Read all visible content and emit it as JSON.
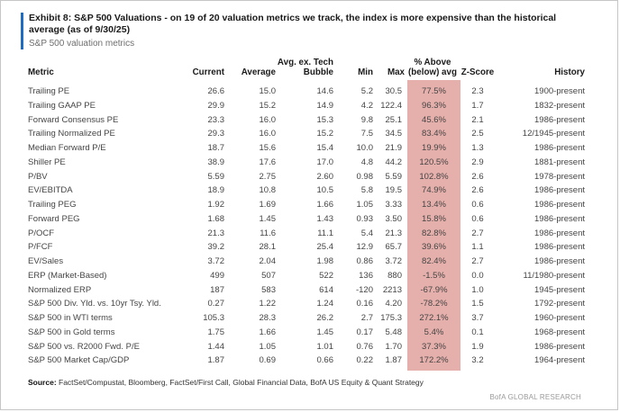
{
  "title": "Exhibit 8: S&P 500 Valuations - on 19 of 20 valuation metrics we track, the index is more expensive than the historical average (as of 9/30/25)",
  "subtitle": "S&P 500 valuation metrics",
  "colors": {
    "accent_bar_blue": "#1e6bbf",
    "highlight_pink": "#e5afab"
  },
  "table": {
    "headers": {
      "metric": "Metric",
      "current": "Current",
      "average": "Average",
      "bubble_line1": "Avg. ex. Tech",
      "bubble_line2": "Bubble",
      "min": "Min",
      "max": "Max",
      "pct_line1": "% Above",
      "pct_line2": "(below) avg",
      "zscore": "Z-Score",
      "history": "History"
    },
    "rows": [
      [
        "Trailing PE",
        "26.6",
        "15.0",
        "14.6",
        "5.2",
        "30.5",
        "77.5%",
        "2.3",
        "1900-present"
      ],
      [
        "Trailing GAAP PE",
        "29.9",
        "15.2",
        "14.9",
        "4.2",
        "122.4",
        "96.3%",
        "1.7",
        "1832-present"
      ],
      [
        "Forward Consensus PE",
        "23.3",
        "16.0",
        "15.3",
        "9.8",
        "25.1",
        "45.6%",
        "2.1",
        "1986-present"
      ],
      [
        "Trailing Normalized PE",
        "29.3",
        "16.0",
        "15.2",
        "7.5",
        "34.5",
        "83.4%",
        "2.5",
        "12/1945-present"
      ],
      [
        "Median Forward P/E",
        "18.7",
        "15.6",
        "15.4",
        "10.0",
        "21.9",
        "19.9%",
        "1.3",
        "1986-present"
      ],
      [
        "Shiller PE",
        "38.9",
        "17.6",
        "17.0",
        "4.8",
        "44.2",
        "120.5%",
        "2.9",
        "1881-present"
      ],
      [
        "P/BV",
        "5.59",
        "2.75",
        "2.60",
        "0.98",
        "5.59",
        "102.8%",
        "2.6",
        "1978-present"
      ],
      [
        "EV/EBITDA",
        "18.9",
        "10.8",
        "10.5",
        "5.8",
        "19.5",
        "74.9%",
        "2.6",
        "1986-present"
      ],
      [
        "Trailing PEG",
        "1.92",
        "1.69",
        "1.66",
        "1.05",
        "3.33",
        "13.4%",
        "0.6",
        "1986-present"
      ],
      [
        "Forward PEG",
        "1.68",
        "1.45",
        "1.43",
        "0.93",
        "3.50",
        "15.8%",
        "0.6",
        "1986-present"
      ],
      [
        "P/OCF",
        "21.3",
        "11.6",
        "11.1",
        "5.4",
        "21.3",
        "82.8%",
        "2.7",
        "1986-present"
      ],
      [
        "P/FCF",
        "39.2",
        "28.1",
        "25.4",
        "12.9",
        "65.7",
        "39.6%",
        "1.1",
        "1986-present"
      ],
      [
        "EV/Sales",
        "3.72",
        "2.04",
        "1.98",
        "0.86",
        "3.72",
        "82.4%",
        "2.7",
        "1986-present"
      ],
      [
        "ERP (Market-Based)",
        "499",
        "507",
        "522",
        "136",
        "880",
        "-1.5%",
        "0.0",
        "11/1980-present"
      ],
      [
        "Normalized ERP",
        "187",
        "583",
        "614",
        "-120",
        "2213",
        "-67.9%",
        "1.0",
        "1945-present"
      ],
      [
        "S&P 500 Div. Yld. vs. 10yr Tsy. Yld.",
        "0.27",
        "1.22",
        "1.24",
        "0.16",
        "4.20",
        "-78.2%",
        "1.5",
        "1792-present"
      ],
      [
        "S&P 500 in WTI terms",
        "105.3",
        "28.3",
        "26.2",
        "2.7",
        "175.3",
        "272.1%",
        "3.7",
        "1960-present"
      ],
      [
        "S&P 500 in Gold terms",
        "1.75",
        "1.66",
        "1.45",
        "0.17",
        "5.48",
        "5.4%",
        "0.1",
        "1968-present"
      ],
      [
        "S&P 500 vs. R2000 Fwd. P/E",
        "1.44",
        "1.05",
        "1.01",
        "0.76",
        "1.70",
        "37.3%",
        "1.9",
        "1986-present"
      ],
      [
        "S&P 500 Market Cap/GDP",
        "1.87",
        "0.69",
        "0.66",
        "0.22",
        "1.87",
        "172.2%",
        "3.2",
        "1964-present"
      ]
    ]
  },
  "footer": {
    "source_label": "Source:",
    "source_text": " FactSet/Compustat, Bloomberg, FactSet/First Call, Global Financial Data, BofA US Equity & Quant Strategy",
    "branding": "BofA GLOBAL RESEARCH"
  }
}
